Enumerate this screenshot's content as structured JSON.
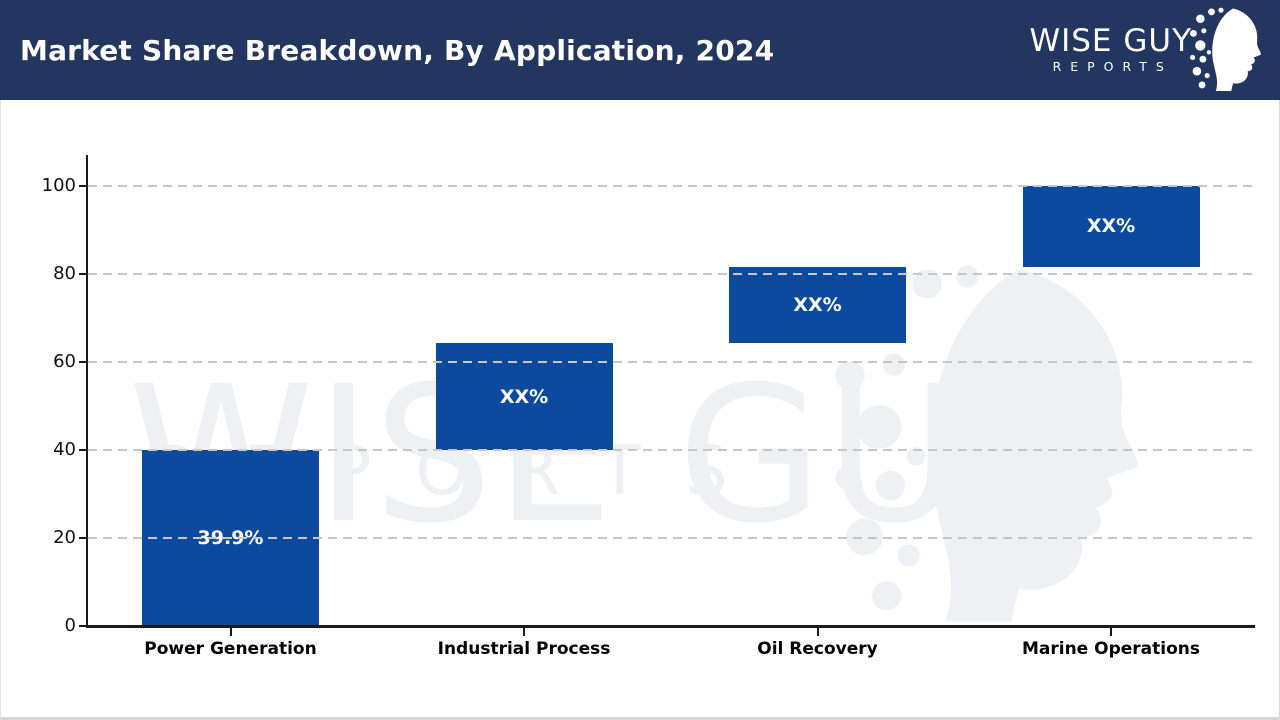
{
  "header": {
    "title": "Market Share Breakdown, By Application, 2024",
    "logo": {
      "name": "WISE GUY",
      "tagline": "REPORTS"
    }
  },
  "watermark": {
    "line1": "WISE GUY",
    "line2": "REPORTS"
  },
  "chart_data": {
    "type": "bar",
    "subtype": "stepped-waterfall",
    "title": "Market Share Breakdown, By Application, 2024",
    "unit": "percent",
    "categories": [
      "Power Generation",
      "Industrial Process",
      "Oil Recovery",
      "Marine Operations"
    ],
    "segments": [
      {
        "category": "Power Generation",
        "start": 0,
        "end": 39.9,
        "label": "39.9%"
      },
      {
        "category": "Industrial Process",
        "start": 39.9,
        "end": 64.4,
        "label": "XX%"
      },
      {
        "category": "Oil Recovery",
        "start": 64.4,
        "end": 81.6,
        "label": "XX%"
      },
      {
        "category": "Marine Operations",
        "start": 81.6,
        "end": 100,
        "label": "XX%"
      }
    ],
    "yticks": [
      0,
      20,
      40,
      60,
      80,
      100
    ],
    "ylim": [
      0,
      107
    ],
    "grid": {
      "axis": "y",
      "style": "dashed",
      "color": "#c7c7c7",
      "above_bars": true
    },
    "legend": "none",
    "bar_color": "#0c4a9e",
    "bar_label_color": "#ffffff",
    "axis_color": "#1a1a1a",
    "tick_label_color": "#111111"
  },
  "colors": {
    "header_bg": "#23365f",
    "accent_blue": "#0c4a9e",
    "watermark": "#eef0f3",
    "frame_line": "#d6d6d6"
  }
}
